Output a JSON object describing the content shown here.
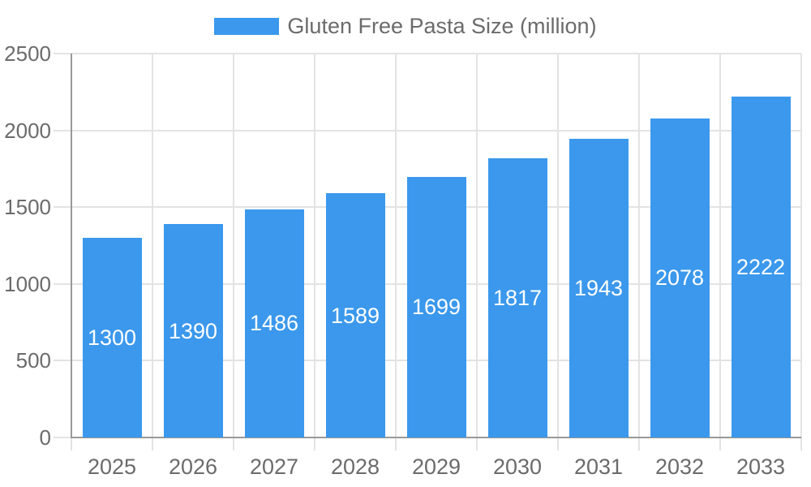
{
  "chart": {
    "legend": {
      "label": "Gluten Free Pasta Size (million)",
      "swatch_color": "#3b98ec"
    },
    "colors": {
      "bar": "#3b98ec",
      "grid": "#e3e3e3",
      "axis": "#999999",
      "tick_text": "#6b6b6b",
      "value_label_text": "#ffffff",
      "background": "#ffffff"
    }
  },
  "chart_data": {
    "type": "bar",
    "title": "Gluten Free Pasta Size (million)",
    "categories": [
      "2025",
      "2026",
      "2027",
      "2028",
      "2029",
      "2030",
      "2031",
      "2032",
      "2033"
    ],
    "series": [
      {
        "name": "Gluten Free Pasta Size (million)",
        "values": [
          1300,
          1390,
          1486,
          1589,
          1699,
          1817,
          1943,
          2078,
          2222
        ]
      }
    ],
    "xlabel": "",
    "ylabel": "",
    "ylim": [
      0,
      2500
    ],
    "yticks": [
      0,
      500,
      1000,
      1500,
      2000,
      2500
    ],
    "grid": true,
    "legend_position": "top",
    "value_labels": "inside-middle-of-bar"
  }
}
